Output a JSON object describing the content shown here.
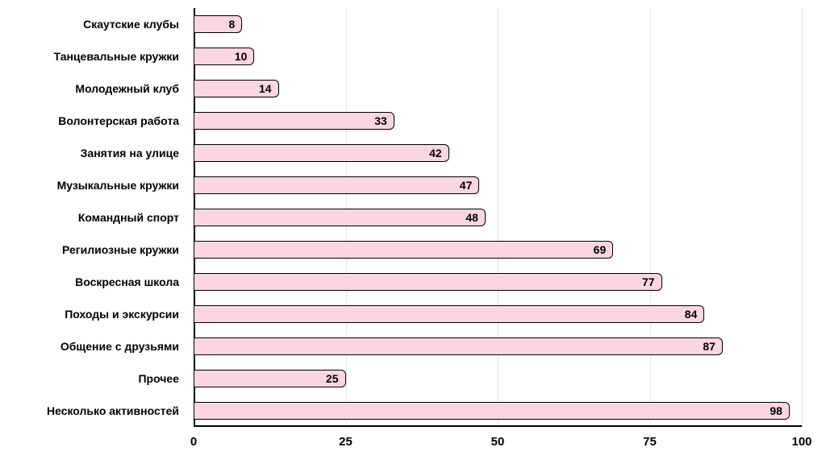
{
  "chart": {
    "type": "bar-horizontal",
    "xlim": [
      0,
      100
    ],
    "xticks": [
      0,
      25,
      50,
      75,
      100
    ],
    "xtick_labels": [
      "0",
      "25",
      "50",
      "75",
      "100"
    ],
    "bar_fill": "#f9d6e1",
    "bar_border": "#000000",
    "grid_color": "#e6e6e6",
    "axis_color": "#000000",
    "background_color": "#ffffff",
    "label_fontsize": 14,
    "xtick_fontsize": 15,
    "value_fontsize": 14,
    "bar_border_radius": 6,
    "bars": [
      {
        "label": "Скаутские клубы",
        "value": 8,
        "value_label": "8"
      },
      {
        "label": "Танцевальные кружки",
        "value": 10,
        "value_label": "10"
      },
      {
        "label": "Молодежный клуб",
        "value": 14,
        "value_label": "14"
      },
      {
        "label": "Волонтерская работа",
        "value": 33,
        "value_label": "33"
      },
      {
        "label": "Занятия на улице",
        "value": 42,
        "value_label": "42"
      },
      {
        "label": "Музыкальные кружки",
        "value": 47,
        "value_label": "47"
      },
      {
        "label": "Командный спорт",
        "value": 48,
        "value_label": "48"
      },
      {
        "label": "Регилиозные кружки",
        "value": 69,
        "value_label": "69"
      },
      {
        "label": "Воскресная школа",
        "value": 77,
        "value_label": "77"
      },
      {
        "label": "Походы и экскурсии",
        "value": 84,
        "value_label": "84"
      },
      {
        "label": "Общение с друзьями",
        "value": 87,
        "value_label": "87"
      },
      {
        "label": "Прочее",
        "value": 25,
        "value_label": "25"
      },
      {
        "label": "Несколько активностей",
        "value": 98,
        "value_label": "98"
      }
    ]
  }
}
